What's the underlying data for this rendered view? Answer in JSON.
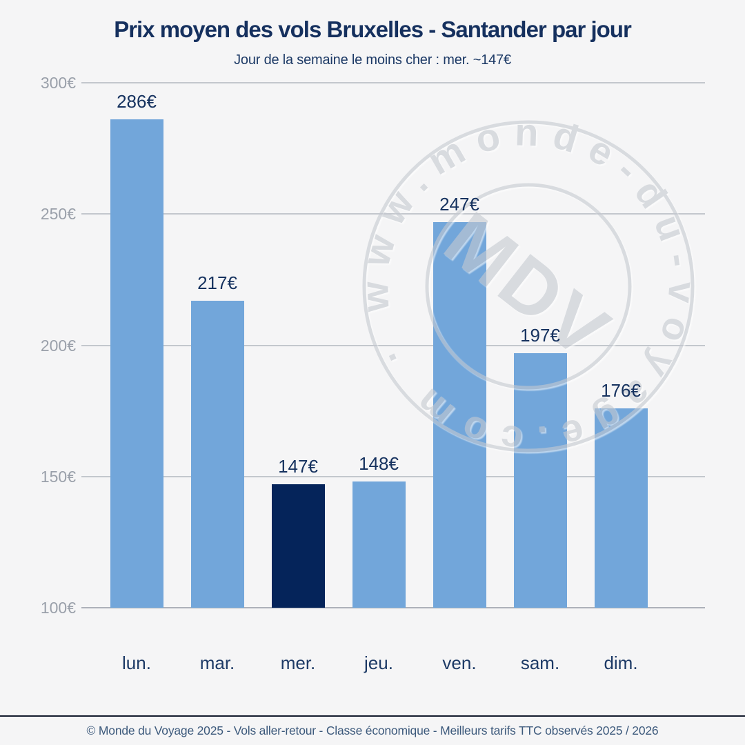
{
  "watermark": {
    "ring_text": "· www.monde-du-voyage.com",
    "center_text": "MDV"
  },
  "footer": {
    "text": "© Monde du Voyage 2025 - Vols aller-retour - Classe économique - Meilleurs tarifs TTC observés 2025 / 2026"
  },
  "chart_data": {
    "type": "bar",
    "title": "Prix moyen des vols Bruxelles - Santander par jour",
    "subtitle": "Jour de la semaine le moins cher : mer. ~147€",
    "categories": [
      "lun.",
      "mar.",
      "mer.",
      "jeu.",
      "ven.",
      "sam.",
      "dim."
    ],
    "values": [
      286,
      217,
      147,
      148,
      247,
      197,
      176
    ],
    "value_labels": [
      "286€",
      "217€",
      "147€",
      "148€",
      "247€",
      "197€",
      "176€"
    ],
    "yticks": [
      "100€",
      "150€",
      "200€",
      "250€",
      "300€"
    ],
    "ymin": 100,
    "ymax": 300,
    "ytick_step": 50,
    "ylim": [
      100,
      300
    ],
    "grid": true,
    "legend": "none",
    "xlabel": "",
    "ylabel": "",
    "highlight_index": 2,
    "bar_color": "#72a6da",
    "highlight_color": "#05245a",
    "accent_text_color": "#15305e"
  }
}
